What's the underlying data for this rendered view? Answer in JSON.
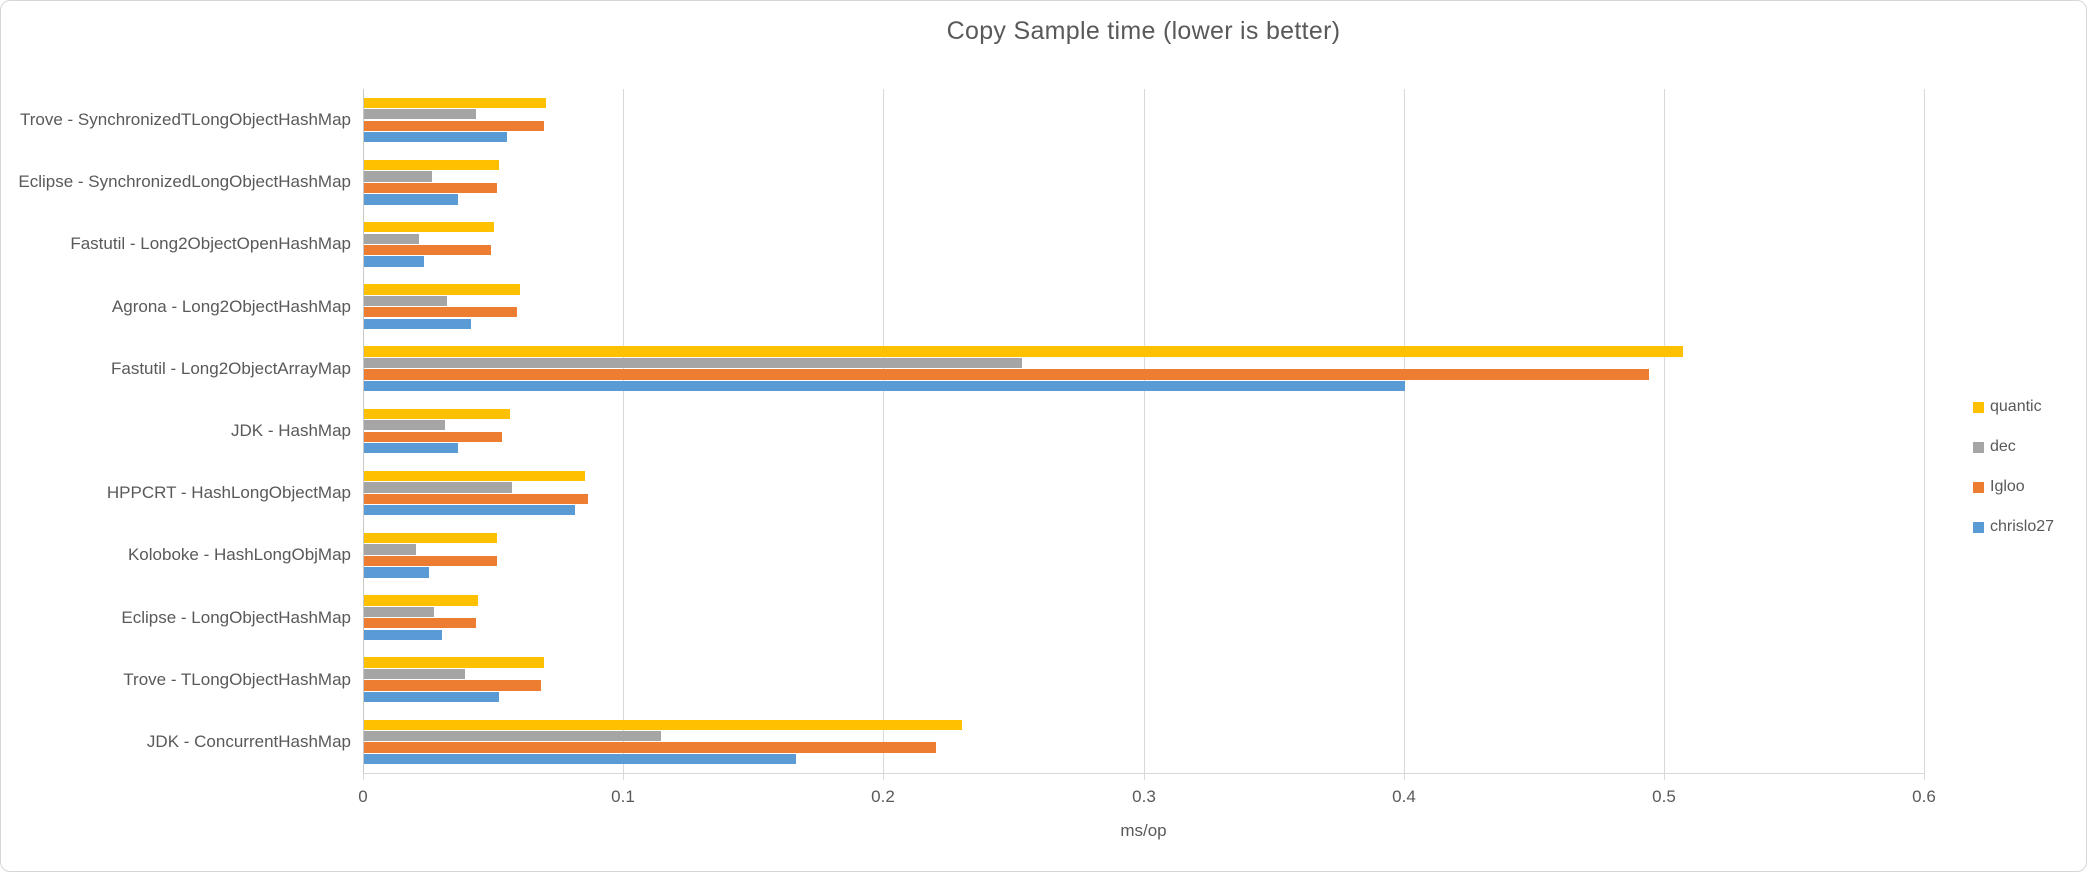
{
  "window": {
    "background": "#FFFFFF",
    "border_color": "#D6D6D6",
    "text_color": "#595959",
    "gridline_color": "#D9D9D9"
  },
  "chart_data": {
    "type": "bar",
    "orientation": "horizontal",
    "title": "Copy Sample time (lower is better)",
    "xlabel": "ms/op",
    "ylabel": "",
    "xlim": [
      0,
      0.6
    ],
    "x_ticks": [
      0,
      0.1,
      0.2,
      0.3,
      0.4,
      0.5,
      0.6
    ],
    "x_tick_labels": [
      "0",
      "0.1",
      "0.2",
      "0.3",
      "0.4",
      "0.5",
      "0.6"
    ],
    "grid": true,
    "legend_position": "right",
    "categories": [
      "Trove - SynchronizedTLongObjectHashMap",
      "Eclipse - SynchronizedLongObjectHashMap",
      "Fastutil - Long2ObjectOpenHashMap",
      "Agrona - Long2ObjectHashMap",
      "Fastutil - Long2ObjectArrayMap",
      "JDK - HashMap",
      "HPPCRT - HashLongObjectMap",
      "Koloboke - HashLongObjMap",
      "Eclipse - LongObjectHashMap",
      "Trove - TLongObjectHashMap",
      "JDK - ConcurrentHashMap"
    ],
    "series": [
      {
        "name": "quantic",
        "color": "#FFC000",
        "values": [
          0.07,
          0.052,
          0.05,
          0.06,
          0.507,
          0.056,
          0.085,
          0.051,
          0.044,
          0.069,
          0.23
        ]
      },
      {
        "name": "dec",
        "color": "#A5A5A5",
        "values": [
          0.043,
          0.026,
          0.021,
          0.032,
          0.253,
          0.031,
          0.057,
          0.02,
          0.027,
          0.039,
          0.114
        ]
      },
      {
        "name": "Igloo",
        "color": "#ED7D31",
        "values": [
          0.069,
          0.051,
          0.049,
          0.059,
          0.494,
          0.053,
          0.086,
          0.051,
          0.043,
          0.068,
          0.22
        ]
      },
      {
        "name": "chrislo27",
        "color": "#5B9BD5",
        "values": [
          0.055,
          0.036,
          0.023,
          0.041,
          0.4,
          0.036,
          0.081,
          0.025,
          0.03,
          0.052,
          0.166
        ]
      }
    ]
  }
}
